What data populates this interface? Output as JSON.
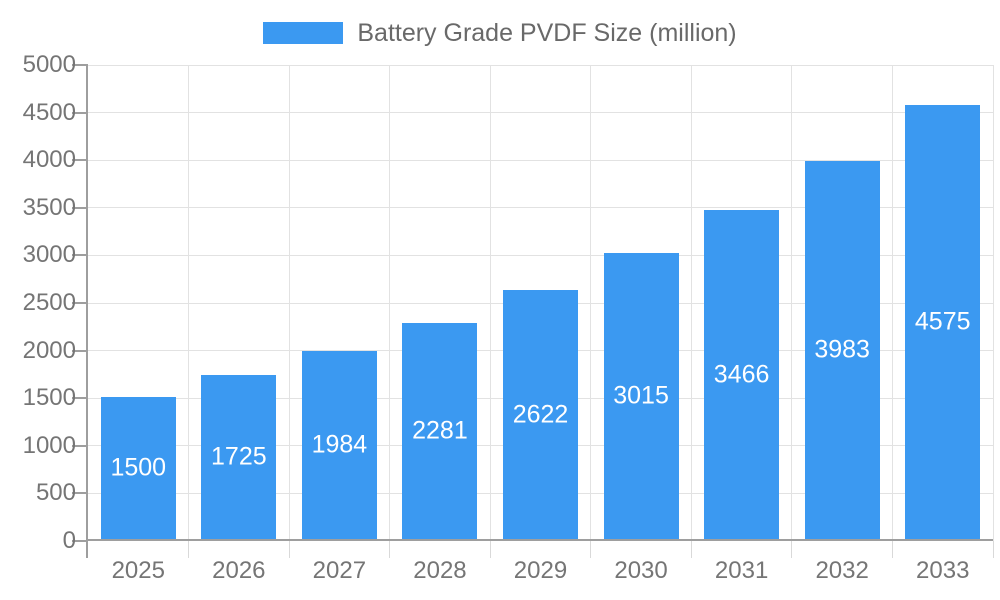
{
  "legend": {
    "label": "Battery Grade PVDF Size (million)"
  },
  "chart_data": {
    "type": "bar",
    "title": "Battery Grade PVDF Size (million)",
    "categories": [
      "2025",
      "2026",
      "2027",
      "2028",
      "2029",
      "2030",
      "2031",
      "2032",
      "2033"
    ],
    "values": [
      1500,
      1725,
      1984,
      2281,
      2622,
      3015,
      3466,
      3983,
      4575
    ],
    "series": [
      {
        "name": "Battery Grade PVDF Size (million)",
        "values": [
          1500,
          1725,
          1984,
          2281,
          2622,
          3015,
          3466,
          3983,
          4575
        ]
      }
    ],
    "value_labels": [
      "1500",
      "1725",
      "1984",
      "2281",
      "2622",
      "3015",
      "3466",
      "3983",
      "4575"
    ],
    "xlabel": "",
    "ylabel": "",
    "ylim": [
      0,
      5000
    ],
    "ytick_step": 500,
    "yticks": [
      "0",
      "500",
      "1000",
      "1500",
      "2000",
      "2500",
      "3000",
      "3500",
      "4000",
      "4500",
      "5000"
    ],
    "grid": true,
    "legend_position": "top",
    "colors": {
      "bar": "#3b99f1",
      "grid": "#e2e2e2",
      "axis": "#9e9e9e",
      "tick_text": "#757575",
      "legend_text": "#696969",
      "value_text": "#ffffff"
    }
  }
}
